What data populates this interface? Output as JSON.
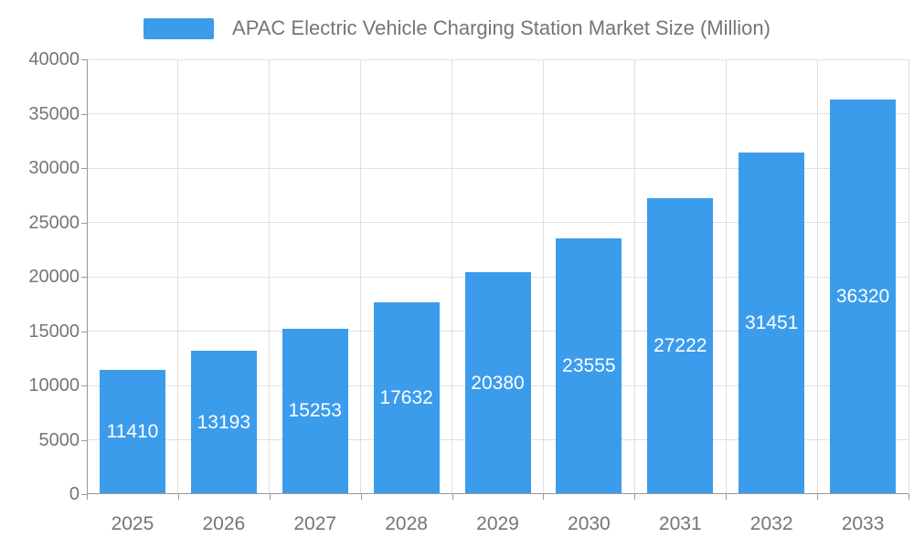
{
  "legend": {
    "label": "APAC Electric Vehicle Charging Station Market Size (Million)",
    "swatch_color": "#3b9cec"
  },
  "chart_data": {
    "type": "bar",
    "title": "APAC Electric Vehicle Charging Station Market Size (Million)",
    "categories": [
      "2025",
      "2026",
      "2027",
      "2028",
      "2029",
      "2030",
      "2031",
      "2032",
      "2033"
    ],
    "series": [
      {
        "name": "APAC Electric Vehicle Charging Station Market Size (Million)",
        "values": [
          11410,
          13193,
          15253,
          17632,
          20380,
          23555,
          27222,
          31451,
          36320
        ]
      }
    ],
    "value_labels_shown": true,
    "xlabel": "",
    "ylabel": "",
    "ylim": [
      0,
      40000
    ],
    "yticks": [
      0,
      5000,
      10000,
      15000,
      20000,
      25000,
      30000,
      35000,
      40000
    ],
    "grid": true,
    "legend_position": "top",
    "bar_color": "#3b9cec",
    "value_label_color": "#ffffff"
  },
  "colors": {
    "bar": "#3b9cec",
    "axis_text": "#757575",
    "grid_line": "#e0e0e0",
    "axis_line": "#999999",
    "background": "#ffffff"
  }
}
